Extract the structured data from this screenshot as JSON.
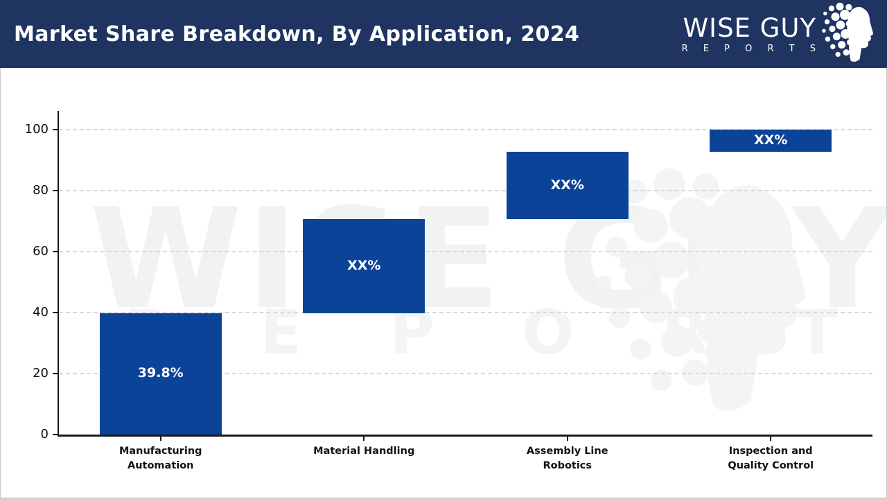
{
  "header": {
    "title": "Market Share Breakdown, By Application, 2024",
    "background": "#1f3461",
    "logo": {
      "line1": "WISE GUY",
      "line2": "R E P O R T S"
    }
  },
  "watermark": {
    "line1": "WISE GUY",
    "line2": "R E P O R T S"
  },
  "chart_data": {
    "type": "bar",
    "subtype": "waterfall",
    "title": "Market Share Breakdown, By Application, 2024",
    "categories": [
      "Manufacturing\nAutomation",
      "Material Handling",
      "Assembly Line\nRobotics",
      "Inspection and\nQuality Control"
    ],
    "bars": [
      {
        "category": "Manufacturing Automation",
        "start": 0,
        "end": 39.8,
        "label": "39.8%"
      },
      {
        "category": "Material Handling",
        "start": 39.8,
        "end": 70.6,
        "label": "XX%"
      },
      {
        "category": "Assembly Line Robotics",
        "start": 70.6,
        "end": 92.7,
        "label": "XX%"
      },
      {
        "category": "Inspection and Quality Control",
        "start": 92.7,
        "end": 100,
        "label": "XX%"
      }
    ],
    "ylim": [
      0,
      100
    ],
    "yticks": [
      0,
      20,
      40,
      60,
      80,
      100
    ],
    "grid": "dashed-horizontal",
    "legend": "none",
    "bar_color": "#0b4398",
    "bar_label_color": "#ffffff",
    "xlabel": "",
    "ylabel": ""
  }
}
